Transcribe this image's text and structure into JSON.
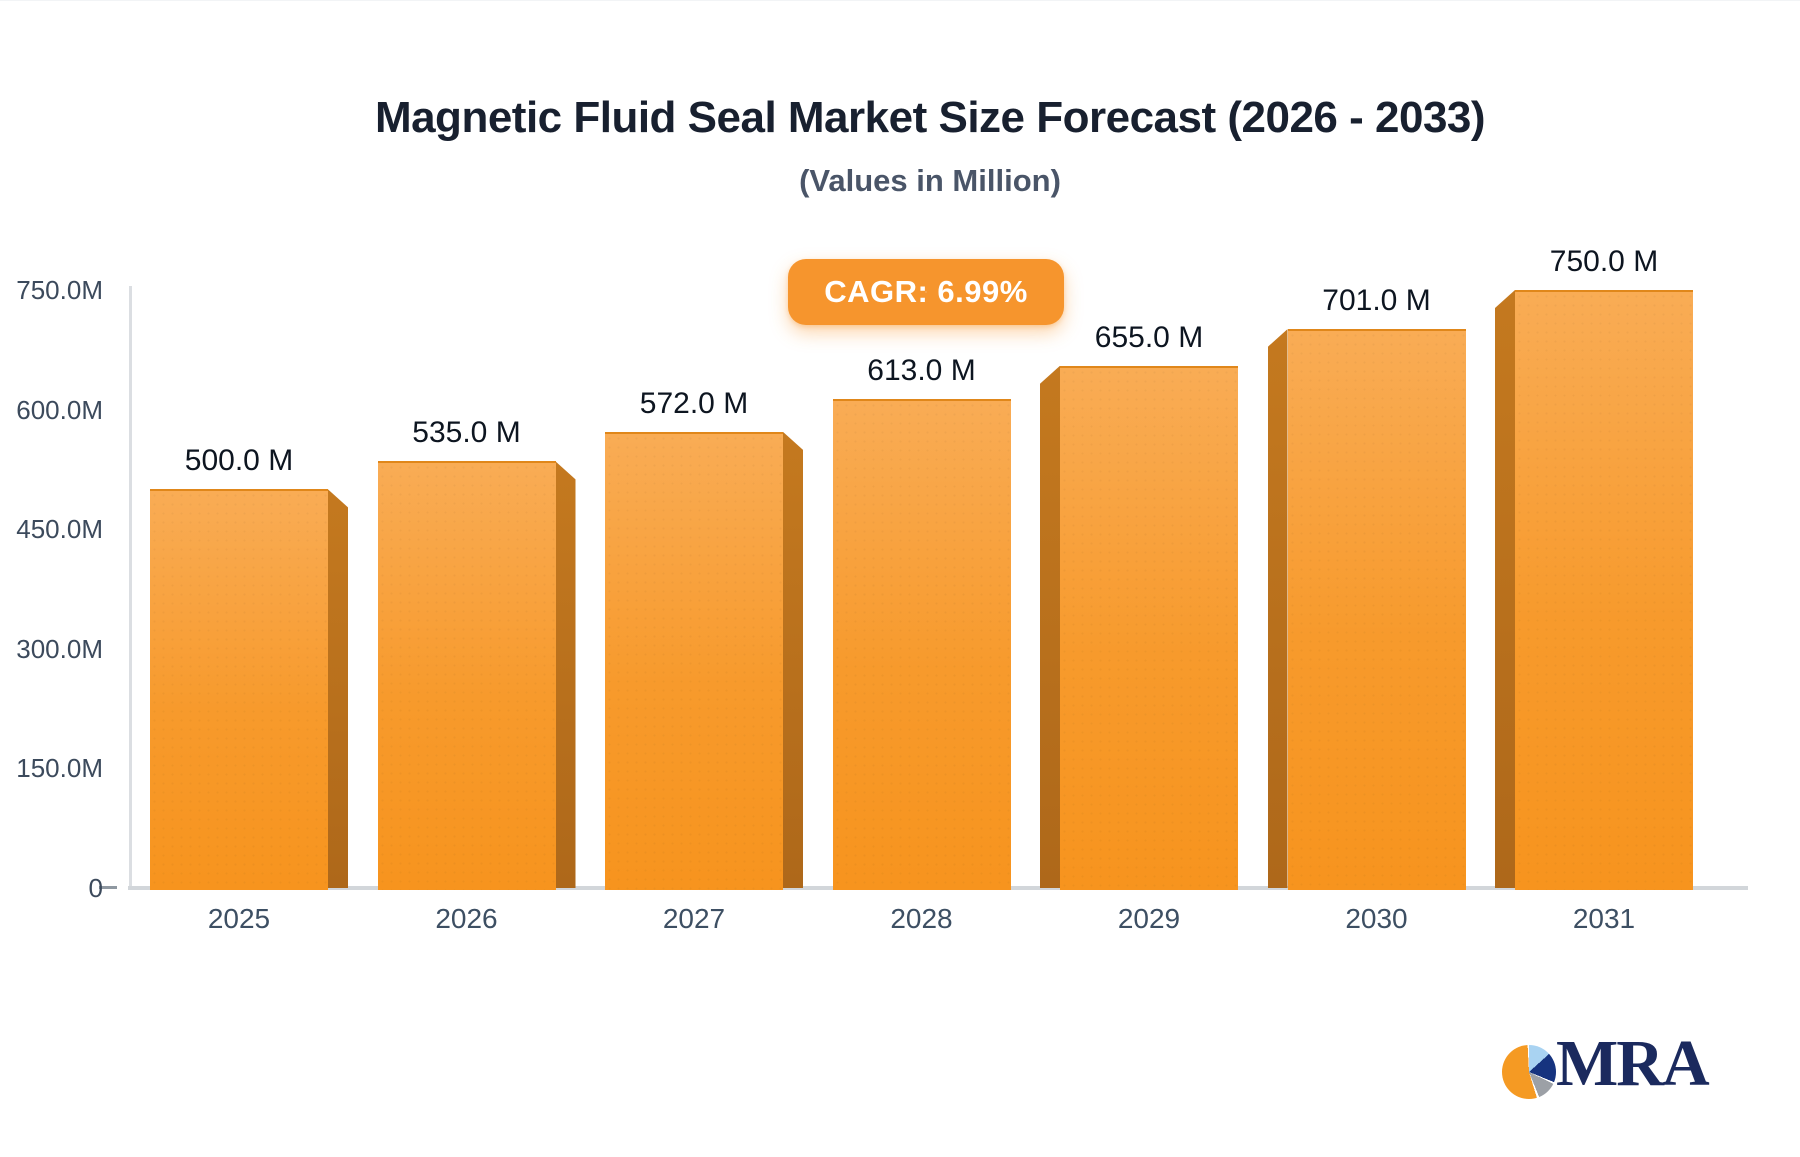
{
  "header": {
    "title": "Magnetic Fluid Seal Market Size Forecast (2026 - 2033)",
    "subtitle": "(Values in Million)",
    "cagr_badge": "CAGR: 6.99%"
  },
  "chart_data": {
    "type": "bar",
    "title": "Magnetic Fluid Seal Market Size Forecast (2026 - 2033)",
    "subtitle": "(Values in Million)",
    "unit": "Million",
    "categories": [
      "2025",
      "2026",
      "2027",
      "2028",
      "2029",
      "2030",
      "2031"
    ],
    "values": [
      500,
      535,
      572,
      613,
      655,
      701,
      750
    ],
    "value_labels": [
      "500.0 M",
      "535.0 M",
      "572.0 M",
      "613.0 M",
      "655.0 M",
      "701.0 M",
      "750.0 M"
    ],
    "cagr": "6.99%",
    "xlabel": "",
    "ylabel": "",
    "ylim": [
      0,
      750
    ],
    "yticks": [
      0,
      150,
      300,
      450,
      600,
      750
    ],
    "ytick_labels": [
      "0",
      "150.0M",
      "300.0M",
      "450.0M",
      "600.0M",
      "750.0M"
    ],
    "grid": false,
    "legend": null,
    "style_3d": true,
    "colors": {
      "bar_top": "#F9AC55",
      "bar_mid": "#F79A2C",
      "bar_bottom": "#F7941E",
      "bar_side_light": "#C4791F",
      "bar_side_dark": "#AE681A",
      "badge": "#F6952D",
      "axis_line": "#DBDEE2",
      "baseline": "#D2D6DA",
      "tick": "#8F98A1",
      "axis_text": "#3C4A5C",
      "value_text": "#0D1520",
      "title_text": "#18202F",
      "subtitle_text": "#4A5568"
    }
  },
  "logo": {
    "text": "MRA",
    "colors": {
      "text": "#1B2A5E",
      "pie_orange": "#F59A23",
      "pie_lightblue": "#A9D3F2",
      "pie_navy": "#16337F",
      "pie_gray": "#9CA0A6"
    }
  }
}
